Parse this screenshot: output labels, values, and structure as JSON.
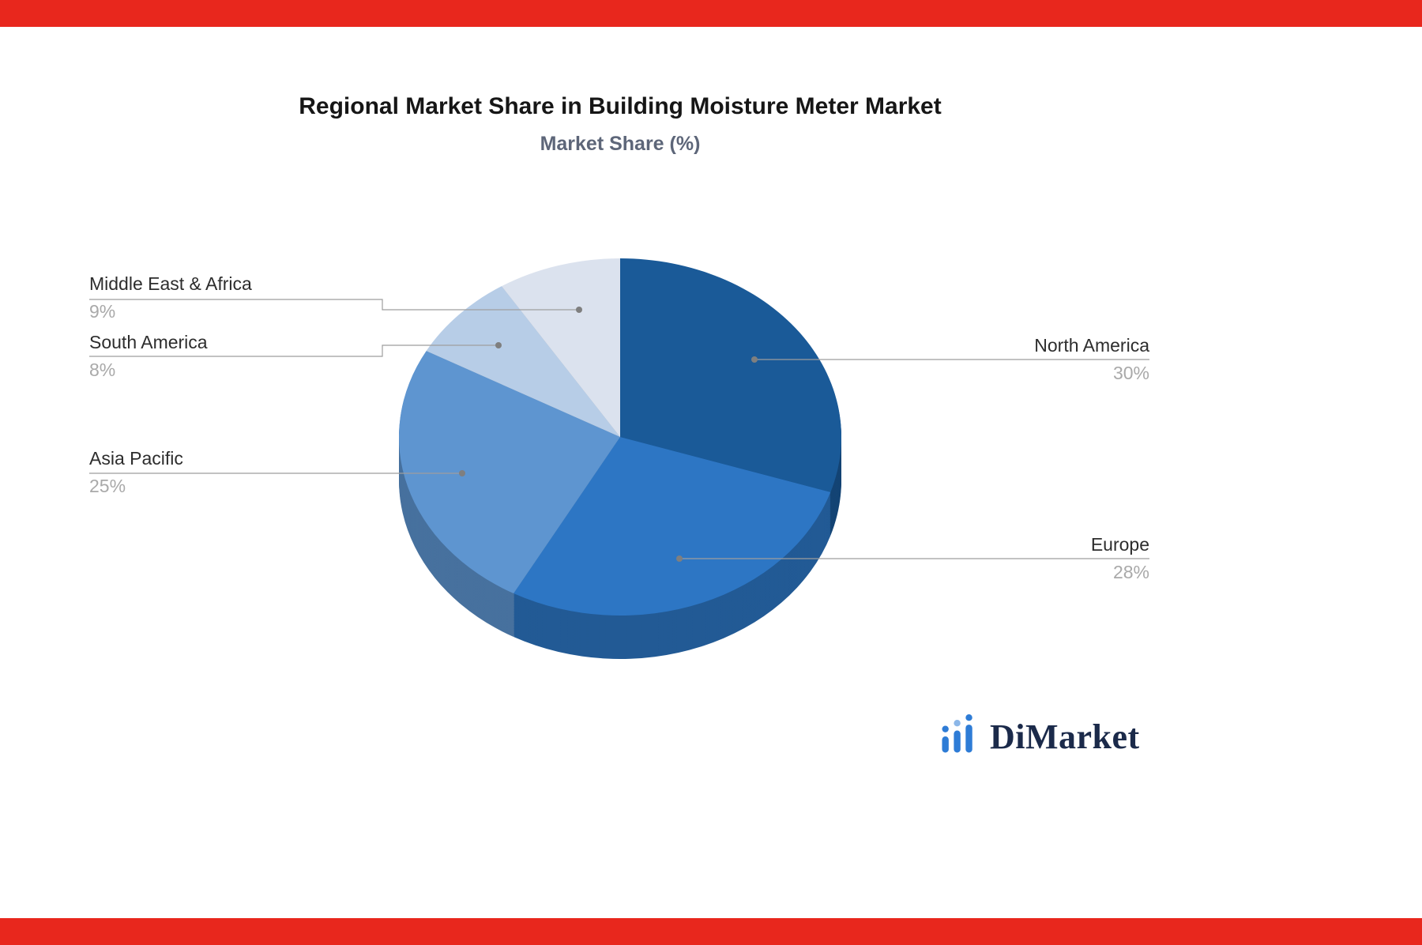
{
  "page": {
    "top_bar_color": "#e8271d",
    "bottom_bar_color": "#e8271d",
    "background": "#ffffff"
  },
  "title": "Regional Market Share in Building Moisture Meter Market",
  "subtitle": "Market Share (%)",
  "logo": {
    "text": "DiMarket",
    "icon": "mini-bar-chart-icon",
    "text_color": "#1b2a4a",
    "icon_color": "#2e7cd6"
  },
  "chart_data": {
    "type": "pie",
    "title": "Regional Market Share in Building Moisture Meter Market",
    "subtitle": "Market Share (%)",
    "unit": "%",
    "style": "3d",
    "direction": "clockwise",
    "start_angle_deg": -90,
    "legend_position": "none",
    "labels": [
      "North America",
      "Europe",
      "Asia Pacific",
      "South America",
      "Middle East & Africa"
    ],
    "values": [
      30,
      28,
      25,
      8,
      9
    ],
    "value_labels": [
      "30%",
      "28%",
      "25%",
      "8%",
      "9%"
    ],
    "colors": [
      "#1a5a98",
      "#2d76c4",
      "#5e95d0",
      "#b7cde7",
      "#dbe2ee"
    ],
    "leader_line_color": "#9e9e9e",
    "leader_dot_color": "#7f7f7f"
  }
}
